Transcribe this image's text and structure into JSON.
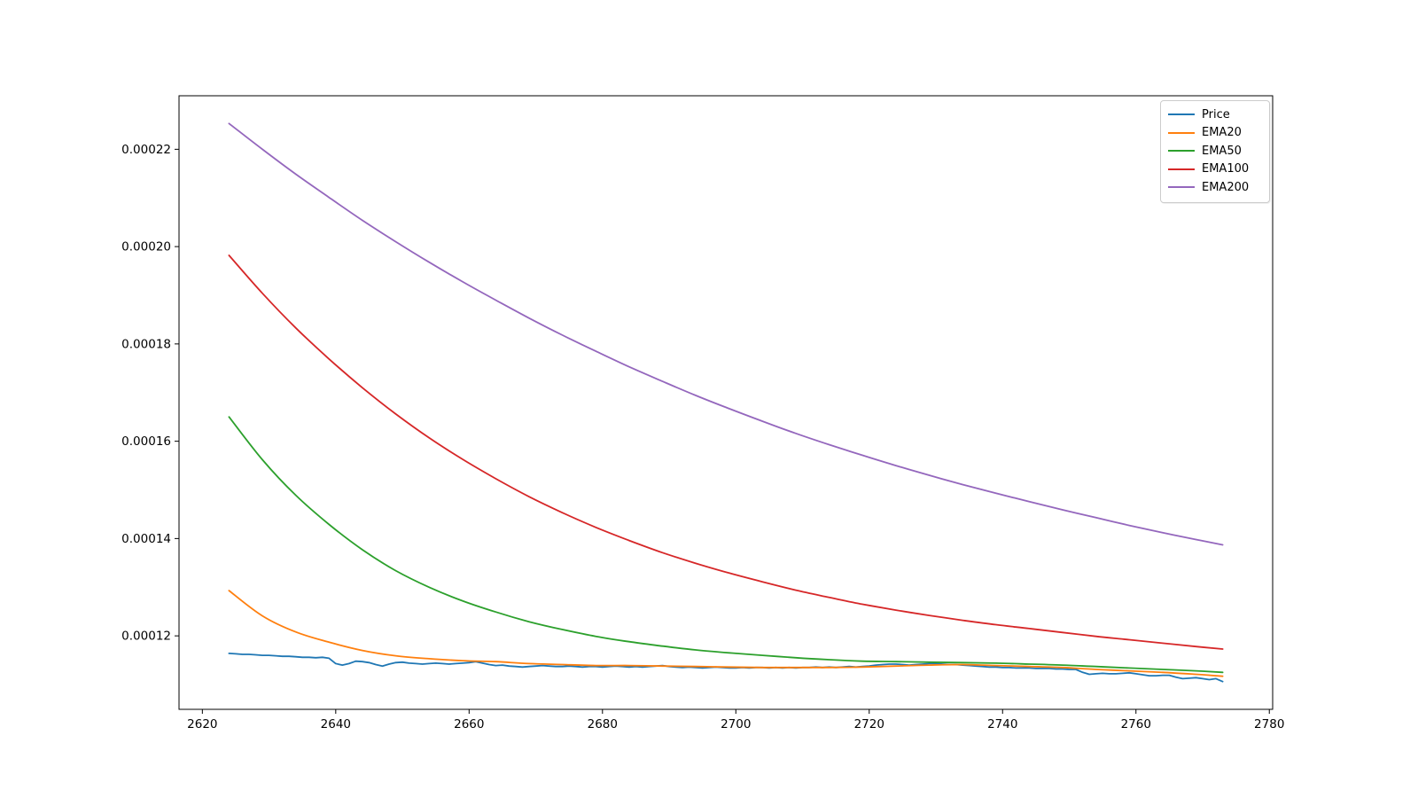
{
  "figure": {
    "background": "#ffffff",
    "frame_color": "#000000"
  },
  "chart_data": {
    "type": "line",
    "title": "",
    "xlabel": "",
    "ylabel": "",
    "grid": false,
    "legend": {
      "position": "upper-right",
      "labels": [
        "Price",
        "EMA20",
        "EMA50",
        "EMA100",
        "EMA200"
      ]
    },
    "xlim": [
      2616.5,
      2780.5
    ],
    "ylim": [
      104.9,
      231.0
    ],
    "y_scale": 1e-06,
    "x_ticks": [
      {
        "v": 2620,
        "label": "2620"
      },
      {
        "v": 2640,
        "label": "2640"
      },
      {
        "v": 2660,
        "label": "2660"
      },
      {
        "v": 2680,
        "label": "2680"
      },
      {
        "v": 2700,
        "label": "2700"
      },
      {
        "v": 2720,
        "label": "2720"
      },
      {
        "v": 2740,
        "label": "2740"
      },
      {
        "v": 2760,
        "label": "2760"
      },
      {
        "v": 2780,
        "label": "2780"
      }
    ],
    "y_ticks": [
      {
        "v": 120,
        "label": "0.00012"
      },
      {
        "v": 140,
        "label": "0.00014"
      },
      {
        "v": 160,
        "label": "0.00016"
      },
      {
        "v": 180,
        "label": "0.00018"
      },
      {
        "v": 200,
        "label": "0.00020"
      },
      {
        "v": 220,
        "label": "0.00022"
      }
    ],
    "series": [
      {
        "name": "Price",
        "color": "#1f77b4",
        "smooth": false,
        "x_start": 2624,
        "x_step": 1,
        "y": [
          116.4,
          116.3,
          116.2,
          116.2,
          116.1,
          116.0,
          116.0,
          115.9,
          115.8,
          115.8,
          115.7,
          115.6,
          115.6,
          115.5,
          115.6,
          115.4,
          114.3,
          114.0,
          114.3,
          114.8,
          114.7,
          114.5,
          114.1,
          113.8,
          114.2,
          114.5,
          114.6,
          114.4,
          114.3,
          114.2,
          114.3,
          114.4,
          114.3,
          114.2,
          114.3,
          114.4,
          114.5,
          114.7,
          114.4,
          114.1,
          113.9,
          114.0,
          113.8,
          113.7,
          113.6,
          113.7,
          113.8,
          113.9,
          113.8,
          113.7,
          113.7,
          113.8,
          113.7,
          113.6,
          113.7,
          113.7,
          113.6,
          113.7,
          113.8,
          113.7,
          113.6,
          113.7,
          113.6,
          113.7,
          113.8,
          113.9,
          113.7,
          113.6,
          113.5,
          113.6,
          113.5,
          113.4,
          113.5,
          113.6,
          113.5,
          113.4,
          113.4,
          113.5,
          113.4,
          113.5,
          113.5,
          113.4,
          113.5,
          113.4,
          113.5,
          113.4,
          113.5,
          113.5,
          113.6,
          113.5,
          113.6,
          113.5,
          113.6,
          113.7,
          113.6,
          113.7,
          113.8,
          114.0,
          114.1,
          114.2,
          114.2,
          114.1,
          114.0,
          114.1,
          114.2,
          114.3,
          114.3,
          114.2,
          114.1,
          114.1,
          114.0,
          113.9,
          113.8,
          113.7,
          113.6,
          113.6,
          113.5,
          113.5,
          113.4,
          113.4,
          113.4,
          113.3,
          113.3,
          113.3,
          113.2,
          113.2,
          113.1,
          113.1,
          112.5,
          112.1,
          112.2,
          112.3,
          112.2,
          112.2,
          112.3,
          112.4,
          112.2,
          112.0,
          111.8,
          111.8,
          111.9,
          111.9,
          111.5,
          111.2,
          111.3,
          111.4,
          111.2,
          111.0,
          111.2,
          110.6
        ]
      },
      {
        "name": "EMA20",
        "color": "#ff7f0e",
        "smooth": true,
        "x": [
          2624,
          2629,
          2634,
          2639,
          2644,
          2649,
          2654,
          2659,
          2664,
          2669,
          2674,
          2679,
          2684,
          2689,
          2694,
          2699,
          2704,
          2709,
          2714,
          2719,
          2724,
          2729,
          2734,
          2739,
          2744,
          2749,
          2754,
          2759,
          2764,
          2769,
          2773
        ],
        "y": [
          129.3,
          124.1,
          120.8,
          118.7,
          117.0,
          115.9,
          115.3,
          114.9,
          114.7,
          114.3,
          114.1,
          113.9,
          113.9,
          113.8,
          113.7,
          113.6,
          113.5,
          113.5,
          113.5,
          113.6,
          113.8,
          114.0,
          114.1,
          113.9,
          113.7,
          113.5,
          113.1,
          112.8,
          112.5,
          112.1,
          111.7
        ]
      },
      {
        "name": "EMA50",
        "color": "#2ca02c",
        "smooth": true,
        "x": [
          2624,
          2629,
          2634,
          2639,
          2644,
          2649,
          2654,
          2659,
          2664,
          2669,
          2674,
          2679,
          2684,
          2689,
          2694,
          2699,
          2704,
          2709,
          2714,
          2719,
          2724,
          2729,
          2734,
          2739,
          2744,
          2749,
          2754,
          2759,
          2764,
          2769,
          2773
        ],
        "y": [
          165.0,
          156.2,
          148.9,
          142.9,
          137.7,
          133.4,
          130.0,
          127.2,
          124.9,
          122.9,
          121.3,
          119.9,
          118.8,
          117.9,
          117.1,
          116.5,
          116.0,
          115.5,
          115.1,
          114.8,
          114.7,
          114.6,
          114.5,
          114.4,
          114.2,
          114.0,
          113.7,
          113.4,
          113.1,
          112.8,
          112.5
        ]
      },
      {
        "name": "EMA100",
        "color": "#d62728",
        "smooth": true,
        "x": [
          2624,
          2629,
          2634,
          2639,
          2644,
          2649,
          2654,
          2659,
          2664,
          2669,
          2674,
          2679,
          2684,
          2689,
          2694,
          2699,
          2704,
          2709,
          2714,
          2719,
          2724,
          2729,
          2734,
          2739,
          2744,
          2749,
          2754,
          2759,
          2764,
          2769,
          2773
        ],
        "y": [
          198.2,
          190.4,
          183.3,
          176.9,
          171.0,
          165.6,
          160.7,
          156.3,
          152.3,
          148.6,
          145.3,
          142.3,
          139.6,
          137.1,
          134.9,
          132.9,
          131.1,
          129.4,
          127.9,
          126.5,
          125.3,
          124.2,
          123.2,
          122.3,
          121.5,
          120.7,
          119.9,
          119.2,
          118.5,
          117.8,
          117.3
        ]
      },
      {
        "name": "EMA200",
        "color": "#9467bd",
        "smooth": true,
        "x": [
          2624,
          2629,
          2634,
          2639,
          2644,
          2649,
          2654,
          2659,
          2664,
          2669,
          2674,
          2679,
          2684,
          2689,
          2694,
          2699,
          2704,
          2709,
          2714,
          2719,
          2724,
          2729,
          2734,
          2739,
          2744,
          2749,
          2754,
          2759,
          2764,
          2769,
          2773
        ],
        "y": [
          225.3,
          220.0,
          214.9,
          210.1,
          205.4,
          201.0,
          196.8,
          192.8,
          189.0,
          185.3,
          181.8,
          178.5,
          175.3,
          172.3,
          169.4,
          166.7,
          164.1,
          161.6,
          159.3,
          157.1,
          155.0,
          153.0,
          151.1,
          149.3,
          147.6,
          145.9,
          144.3,
          142.7,
          141.2,
          139.8,
          138.7
        ]
      }
    ]
  }
}
